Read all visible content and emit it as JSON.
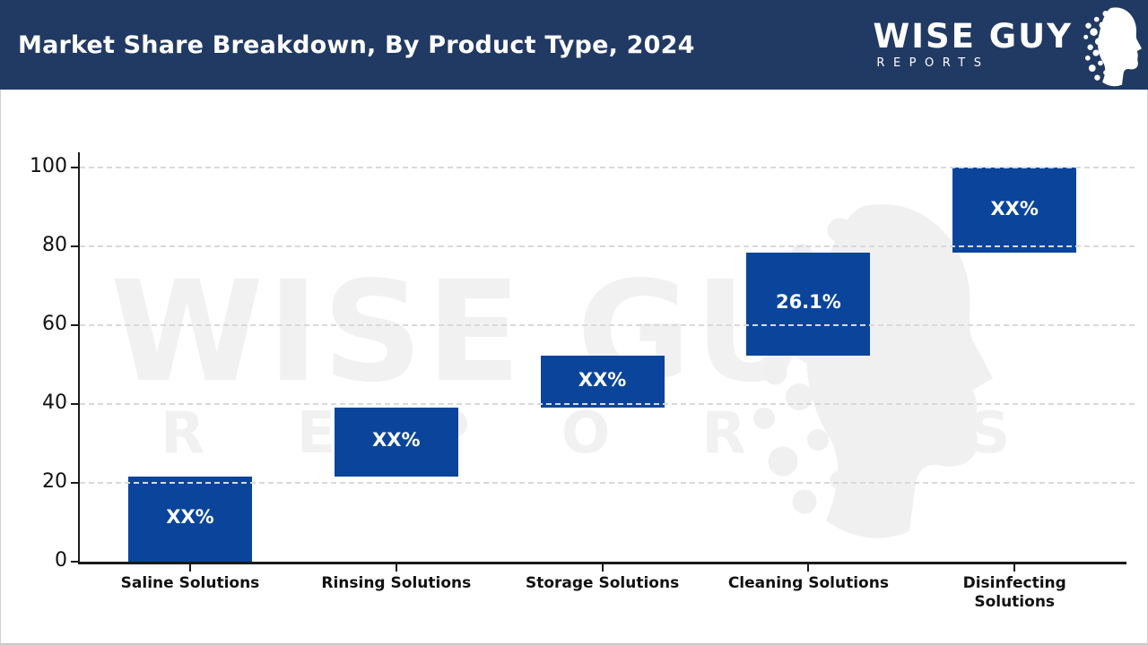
{
  "header": {
    "title": "Market Share Breakdown, By Product Type, 2024",
    "logo_line1": "WISE GUY",
    "logo_line2": "REPORTS"
  },
  "watermark": {
    "line1": "WISE GUY",
    "line2": "R E P O R T S"
  },
  "colors": {
    "header_bg": "#213a63",
    "bar": "#0a459b",
    "axis": "#1a1a1a",
    "gridline": "#d9d9d9",
    "bar_label_text": "#ffffff",
    "watermark": "#f1f1f1"
  },
  "chart_data": {
    "type": "bar",
    "subtype": "waterfall",
    "title": "Market Share Breakdown, By Product Type, 2024",
    "categories": [
      "Saline Solutions",
      "Rinsing Solutions",
      "Storage Solutions",
      "Cleaning Solutions",
      "Disinfecting Solutions"
    ],
    "segments": [
      {
        "category": "Saline Solutions",
        "start": 0,
        "value": 21.7,
        "label": "XX%"
      },
      {
        "category": "Rinsing Solutions",
        "start": 21.7,
        "value": 17.4,
        "label": "XX%"
      },
      {
        "category": "Storage Solutions",
        "start": 39.1,
        "value": 13.2,
        "label": "XX%"
      },
      {
        "category": "Cleaning Solutions",
        "start": 52.3,
        "value": 26.1,
        "label": "26.1%"
      },
      {
        "category": "Disinfecting Solutions",
        "start": 78.4,
        "value": 21.6,
        "label": "XX%"
      }
    ],
    "yticks": [
      0,
      20,
      40,
      60,
      80,
      100
    ],
    "ylim": [
      0,
      104
    ],
    "xlabel": "",
    "ylabel": "",
    "grid": "horizontal-dashed",
    "legend": "none"
  }
}
